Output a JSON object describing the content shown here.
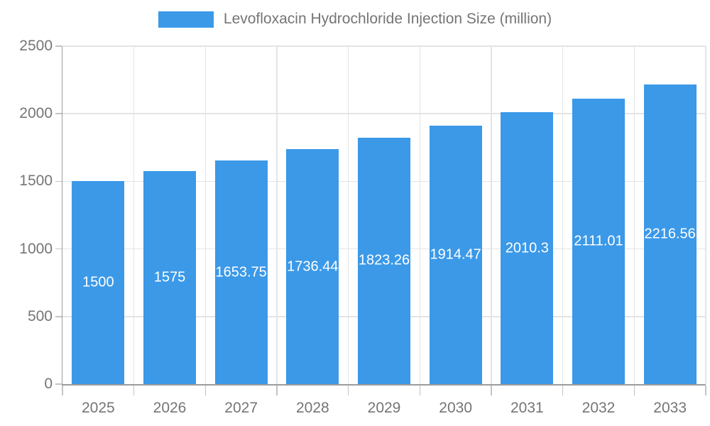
{
  "chart_data": {
    "type": "bar",
    "title": "Levofloxacin Hydrochloride Injection Size (million)",
    "categories": [
      "2025",
      "2026",
      "2027",
      "2028",
      "2029",
      "2030",
      "2031",
      "2032",
      "2033"
    ],
    "values": [
      1500,
      1575,
      1653.75,
      1736.44,
      1823.26,
      1914.47,
      2010.3,
      2111.01,
      2216.56
    ],
    "bar_labels": [
      "1500",
      "1575",
      "1653.75",
      "1736.44",
      "1823.26",
      "1914.47",
      "2010.3",
      "2111.01",
      "2216.56"
    ],
    "xlabel": "",
    "ylabel": "",
    "ylim": [
      0,
      2500
    ],
    "yticks": [
      0,
      500,
      1000,
      1500,
      2000,
      2500
    ],
    "legend_position": "top",
    "grid": true,
    "colors": {
      "bar": "#3b99e8",
      "axis_text": "#757575",
      "bar_label_text": "#ffffff",
      "grid_line": "#e4e4e4",
      "axis_line": "#9c9c9c",
      "tick_line": "#c4c4c4",
      "background": "#ffffff"
    }
  }
}
